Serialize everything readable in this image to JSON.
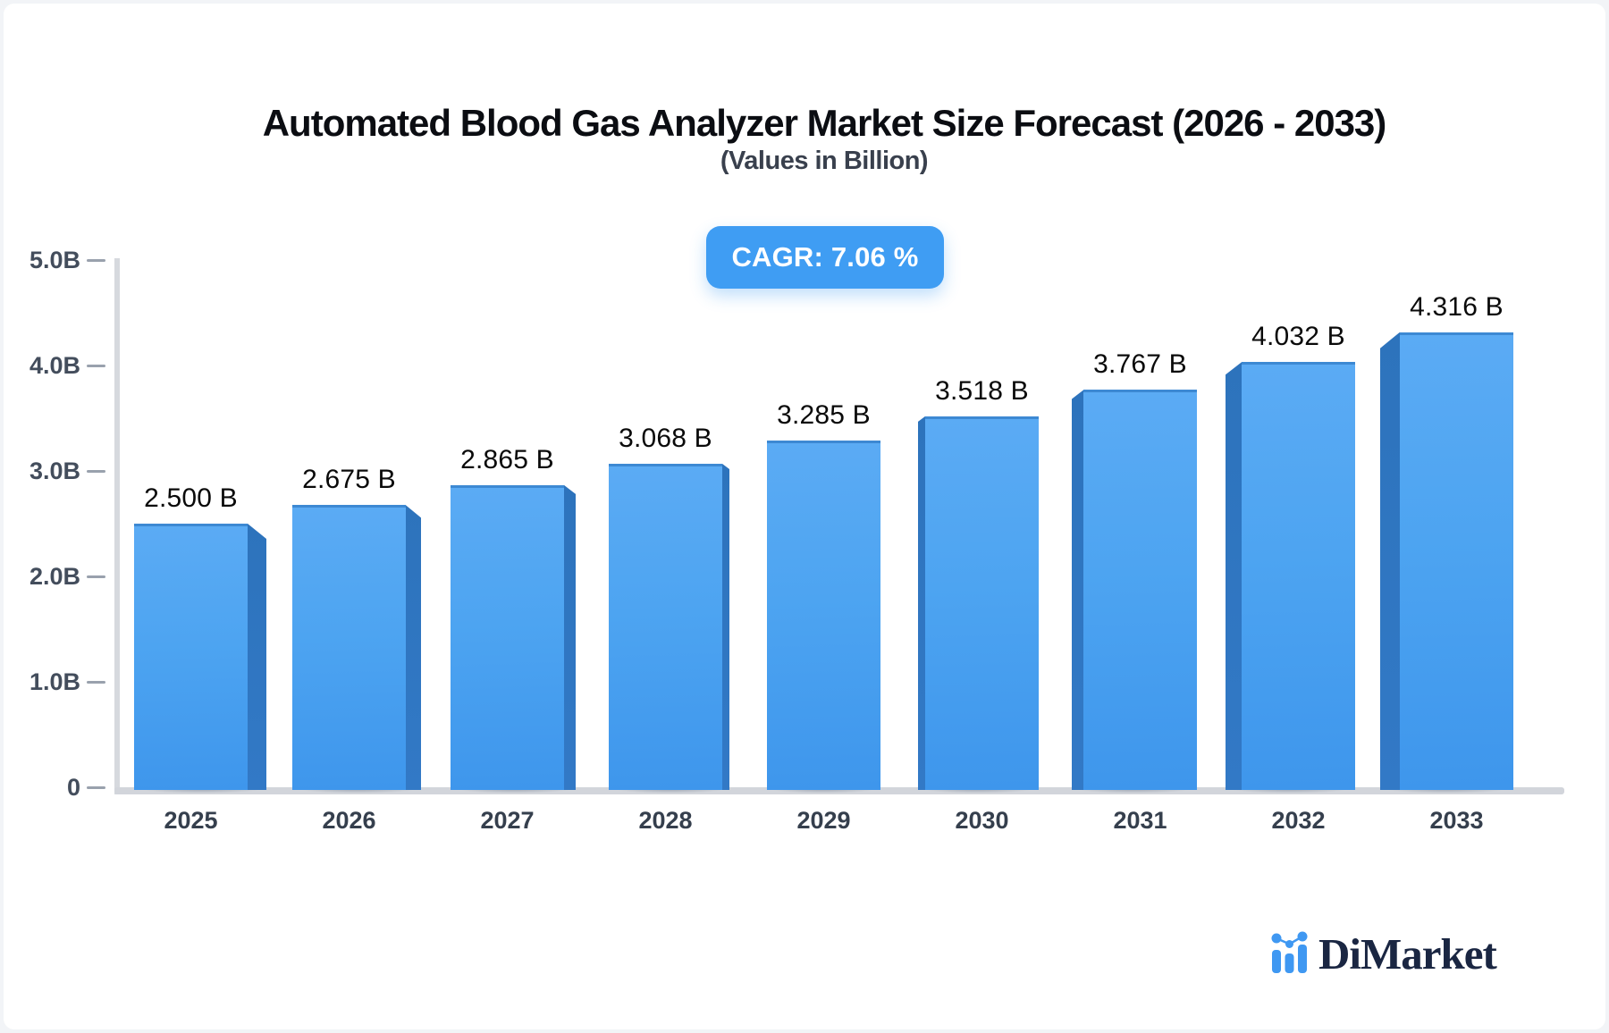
{
  "header": {
    "title": "Automated Blood Gas Analyzer Market Size Forecast (2026 - 2033)",
    "subtitle": "(Values in Billion)",
    "cagr_badge": "CAGR: 7.06 %"
  },
  "chart_data": {
    "type": "bar",
    "title": "Automated Blood Gas Analyzer Market Size Forecast (2026 - 2033)",
    "subtitle": "(Values in Billion)",
    "cagr_percent": 7.06,
    "categories": [
      "2025",
      "2026",
      "2027",
      "2028",
      "2029",
      "2030",
      "2031",
      "2032",
      "2033"
    ],
    "values": [
      2.5,
      2.675,
      2.865,
      3.068,
      3.285,
      3.518,
      3.767,
      4.032,
      4.316
    ],
    "value_labels": [
      "2.500 B",
      "2.675 B",
      "2.865 B",
      "3.068 B",
      "3.285 B",
      "3.518 B",
      "3.767 B",
      "4.032 B",
      "4.316 B"
    ],
    "y_ticks": [
      {
        "label": "5.0B",
        "value": 5
      },
      {
        "label": "4.0B",
        "value": 4
      },
      {
        "label": "3.0B",
        "value": 3
      },
      {
        "label": "2.0B",
        "value": 2
      },
      {
        "label": "1.0B",
        "value": 1
      },
      {
        "label": "0",
        "value": 0
      }
    ],
    "ylim": [
      0,
      5
    ],
    "unit": "Billion",
    "grid": "off",
    "legend": "none",
    "bar_front_color": "#4aa1ef",
    "bar_side_color": "#2f78c2"
  },
  "branding": {
    "logo_text": "DiMarket",
    "logo_icon": "mini-bar-trend-chart"
  },
  "colors": {
    "accent_blue": "#3f9df3",
    "axis_gray": "#d3d6dc",
    "text_dark": "#0c1220"
  }
}
